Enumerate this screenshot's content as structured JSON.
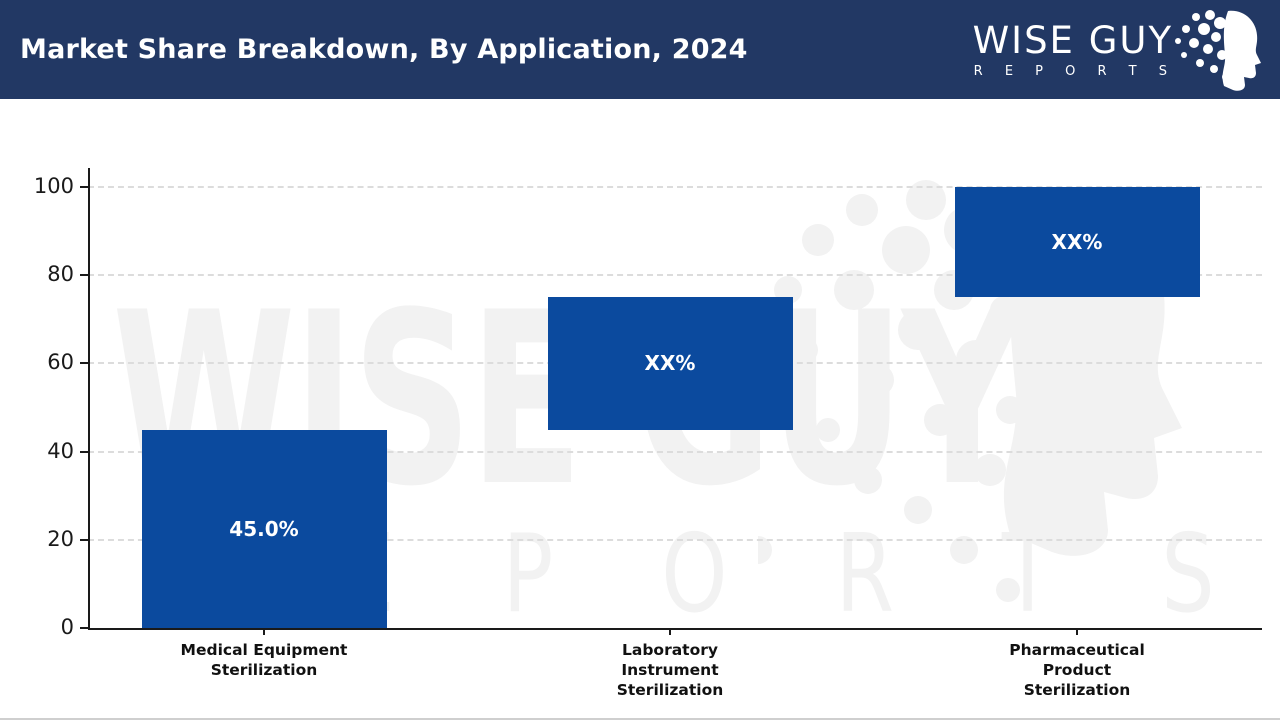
{
  "header": {
    "title": "Market Share Breakdown, By Application, 2024",
    "logo": {
      "wordmark": "WISE GUY",
      "sub": "R E P O R T S"
    }
  },
  "watermark": {
    "wordmark": "WISE GUY",
    "sub": "R E P O R T S"
  },
  "colors": {
    "header_bg": "#223864",
    "bar": "#0b4a9e",
    "gridline": "#dcdcdc",
    "axis": "#1a1a1a",
    "watermark": "#f2f2f2",
    "bar_value_text": "#ffffff"
  },
  "chart_data": {
    "type": "bar",
    "subtype": "floating-segment-bars (stacked market-share breakdown)",
    "title": "Market Share Breakdown, By Application, 2024",
    "categories": [
      "Medical Equipment Sterilization",
      "Laboratory Instrument Sterilization",
      "Pharmaceutical Product Sterilization"
    ],
    "category_label_lines": [
      [
        "Medical Equipment",
        "Sterilization"
      ],
      [
        "Laboratory",
        "Instrument",
        "Sterilization"
      ],
      [
        "Pharmaceutical",
        "Product",
        "Sterilization"
      ]
    ],
    "segments": [
      {
        "category": "Medical Equipment Sterilization",
        "start": 0,
        "end": 45,
        "value_label": "45.0%"
      },
      {
        "category": "Laboratory Instrument Sterilization",
        "start": 45,
        "end": 75,
        "value_label": "XX%"
      },
      {
        "category": "Pharmaceutical Product Sterilization",
        "start": 75,
        "end": 100,
        "value_label": "XX%"
      }
    ],
    "xlabel": "",
    "ylabel": "",
    "ylim": [
      0,
      100
    ],
    "yticks": [
      0,
      20,
      40,
      60,
      80,
      100
    ],
    "grid": "horizontal-dashed",
    "legend": "none"
  }
}
